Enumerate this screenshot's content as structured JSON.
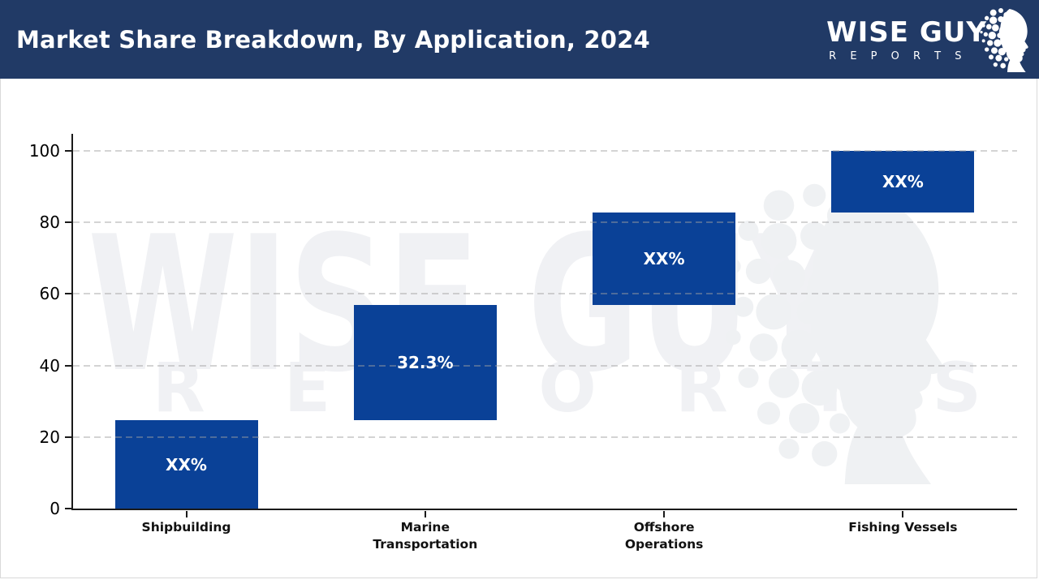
{
  "header": {
    "title": "Market Share Breakdown, By Application, 2024",
    "background_color": "#213a66",
    "logo": {
      "wordmark": "WISE GUY",
      "subtext": "R E P O R T S",
      "icon": "dotted-face-profile"
    }
  },
  "watermark": {
    "wordmark": "WISE GUY",
    "subtext": "R E P O R T S",
    "icon": "dotted-face-profile",
    "color": "#f0f1f4"
  },
  "chart_data": {
    "type": "bar",
    "variant": "floating-waterfall",
    "title": "Market Share Breakdown, By Application, 2024",
    "categories": [
      "Shipbuilding",
      "Marine Transportation",
      "Offshore Operations",
      "Fishing Vessels"
    ],
    "category_display": [
      "Shipbuilding",
      "Marine\nTransportation",
      "Offshore\nOperations",
      "Fishing Vessels"
    ],
    "segments": [
      {
        "category": "Shipbuilding",
        "start": 0,
        "end": 24.7,
        "label": "XX%"
      },
      {
        "category": "Marine Transportation",
        "start": 24.7,
        "end": 57.0,
        "label": "32.3%"
      },
      {
        "category": "Offshore Operations",
        "start": 57.0,
        "end": 82.8,
        "label": "XX%"
      },
      {
        "category": "Fishing Vessels",
        "start": 82.8,
        "end": 100.0,
        "label": "XX%"
      }
    ],
    "xlabel": "",
    "ylabel": "",
    "ylim": [
      0,
      100
    ],
    "yticks": [
      0,
      20,
      40,
      60,
      80,
      100
    ],
    "grid": "horizontal-dashed",
    "legend": "none",
    "bar_color": "#0a4197",
    "bar_label_color": "#ffffff",
    "axis_color": "#1a1a1a",
    "gridline_color": "#d9d9d9"
  }
}
